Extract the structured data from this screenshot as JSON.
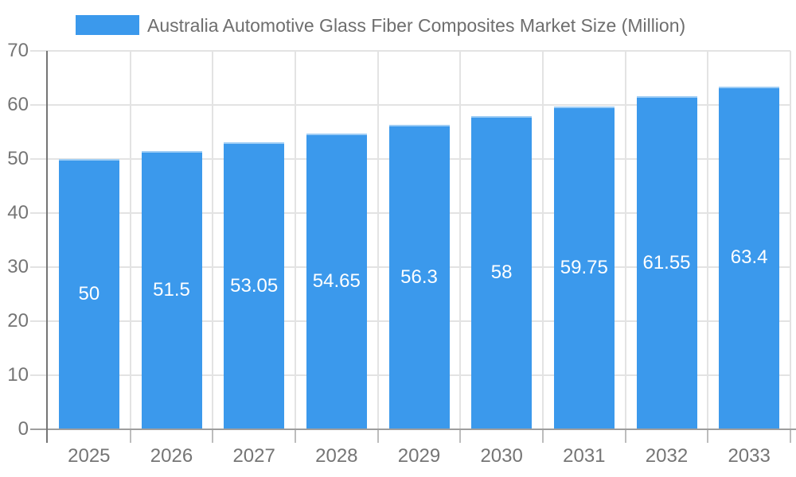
{
  "legend": {
    "label": "Australia Automotive Glass Fiber Composites Market Size (Million)"
  },
  "chart_data": {
    "type": "bar",
    "title": "Australia Automotive Glass Fiber Composites Market Size (Million)",
    "categories": [
      "2025",
      "2026",
      "2027",
      "2028",
      "2029",
      "2030",
      "2031",
      "2032",
      "2033"
    ],
    "values": [
      50,
      51.5,
      53.05,
      54.65,
      56.3,
      58,
      59.75,
      61.55,
      63.4
    ],
    "value_labels": [
      "50",
      "51.5",
      "53.05",
      "54.65",
      "56.3",
      "58",
      "59.75",
      "61.55",
      "63.4"
    ],
    "xlabel": "",
    "ylabel": "",
    "ylim": [
      0,
      70
    ],
    "yticks": [
      0,
      10,
      20,
      30,
      40,
      50,
      60,
      70
    ],
    "grid": true,
    "legend_position": "top-center",
    "colors": {
      "bar": "#3B99EC",
      "bar_top_edge": "#9ECDF5",
      "value_label": "#FFFFFF",
      "axis_label": "#757575",
      "legend_text": "#6E6E6E",
      "gridline": "#E3E3E3",
      "y_axis_line": "#757575",
      "x_axis_line": "#9E9E9E",
      "x_tick": "#BDBDBD",
      "background": "#FFFFFF"
    }
  }
}
